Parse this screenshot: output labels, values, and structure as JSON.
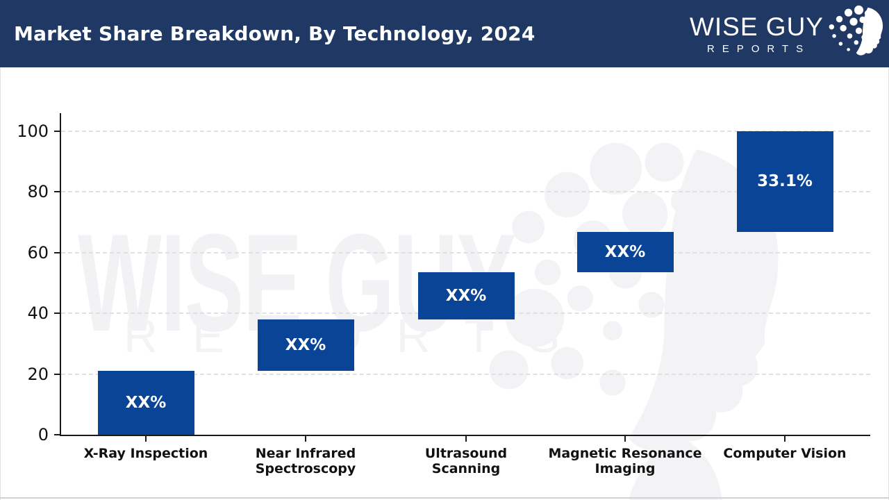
{
  "header": {
    "title": "Market Share Breakdown, By Technology, 2024",
    "bg_color": "#1f3864",
    "logo": {
      "line1": "WISE GUY",
      "line2": "REPORTS"
    }
  },
  "watermark": {
    "line1": "WISE GUY",
    "line2": "REPORTS"
  },
  "chart_data": {
    "type": "bar",
    "subtype": "waterfall-floating-bars",
    "title": "Market Share Breakdown, By Technology, 2024",
    "categories": [
      "X-Ray Inspection",
      "Near Infrared Spectroscopy",
      "Ultrasound Scanning",
      "Magnetic Resonance Imaging",
      "Computer Vision"
    ],
    "category_label_lines": [
      "X-Ray Inspection",
      "Near Infrared\nSpectroscopy",
      "Ultrasound\nScanning",
      "Magnetic Resonance\nImaging",
      "Computer Vision"
    ],
    "starts": [
      0,
      21.0,
      38.1,
      53.6,
      66.9
    ],
    "ends": [
      21.0,
      38.1,
      53.6,
      66.9,
      100.0
    ],
    "values": [
      21.0,
      17.1,
      15.5,
      13.3,
      33.1
    ],
    "bar_labels": [
      "XX%",
      "XX%",
      "XX%",
      "XX%",
      "33.1%"
    ],
    "ylabel": "",
    "xlabel": "",
    "yticks": [
      0,
      20,
      40,
      60,
      80,
      100
    ],
    "ylim": [
      0,
      106
    ],
    "grid": "horizontal-dashed",
    "legend": "none",
    "bar_color": "#0a4497",
    "bar_label_color": "#ffffff",
    "axis_color": "#1a1a1a",
    "grid_color": "#e0e0e0"
  }
}
